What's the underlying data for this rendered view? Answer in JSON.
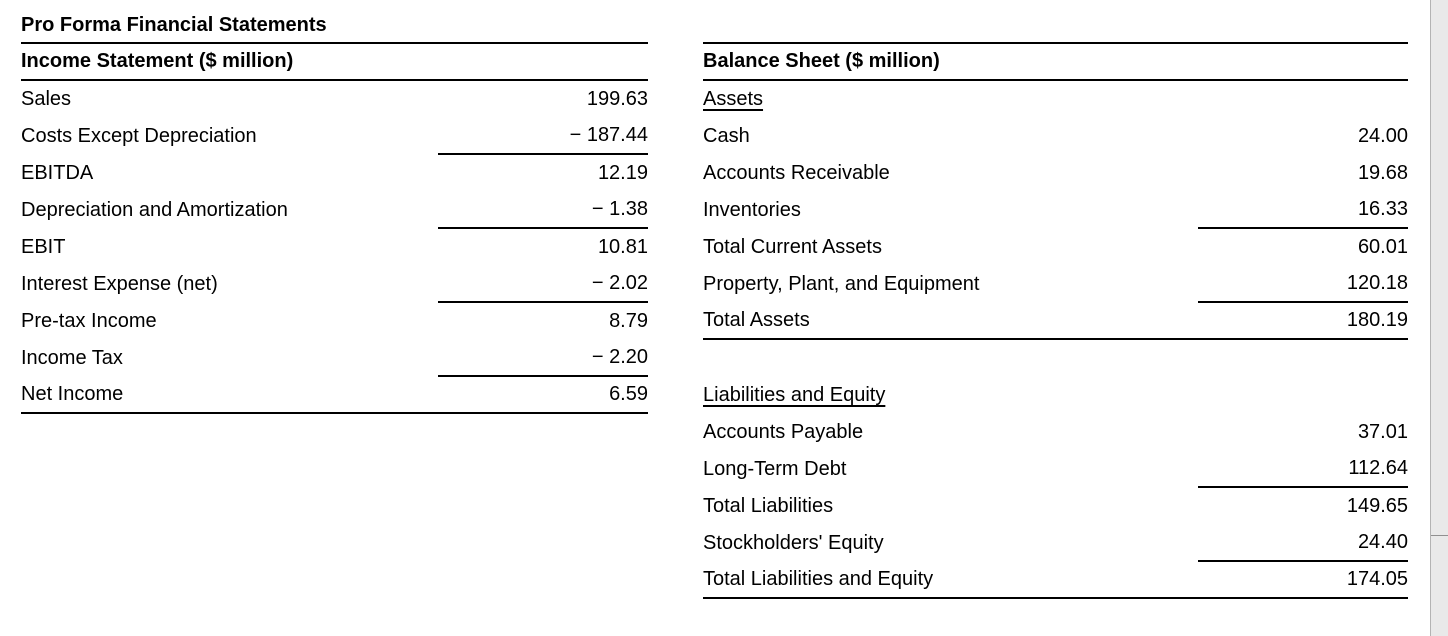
{
  "title": "Pro Forma Financial Statements",
  "income_statement": {
    "header": "Income Statement ($ million)",
    "rows": [
      {
        "label": "Sales",
        "value": "199.63"
      },
      {
        "label": "Costs Except Depreciation",
        "value": "− 187.44"
      },
      {
        "label": "EBITDA",
        "value": "12.19"
      },
      {
        "label": "Depreciation and Amortization",
        "value": "− 1.38"
      },
      {
        "label": "EBIT",
        "value": "10.81"
      },
      {
        "label": "Interest Expense (net)",
        "value": "− 2.02"
      },
      {
        "label": "Pre-tax Income",
        "value": "8.79"
      },
      {
        "label": "Income Tax",
        "value": "− 2.20"
      },
      {
        "label": "Net Income",
        "value": "6.59"
      }
    ]
  },
  "balance_sheet": {
    "header": "Balance Sheet ($ million)",
    "assets_section_label": "Assets",
    "assets_rows": [
      {
        "label": "Cash",
        "value": "24.00"
      },
      {
        "label": "Accounts Receivable",
        "value": "19.68"
      },
      {
        "label": "Inventories",
        "value": "16.33"
      },
      {
        "label": "Total Current Assets",
        "value": "60.01"
      },
      {
        "label": "Property, Plant, and Equipment",
        "value": "120.18"
      },
      {
        "label": "Total Assets",
        "value": "180.19"
      }
    ],
    "liabilities_section_label": "Liabilities and Equity",
    "liabilities_rows": [
      {
        "label": "Accounts Payable",
        "value": "37.01"
      },
      {
        "label": "Long-Term Debt",
        "value": "112.64"
      },
      {
        "label": "Total Liabilities",
        "value": "149.65"
      },
      {
        "label": "Stockholders' Equity",
        "value": "24.40"
      },
      {
        "label": "Total Liabilities and Equity",
        "value": "174.05"
      }
    ]
  }
}
